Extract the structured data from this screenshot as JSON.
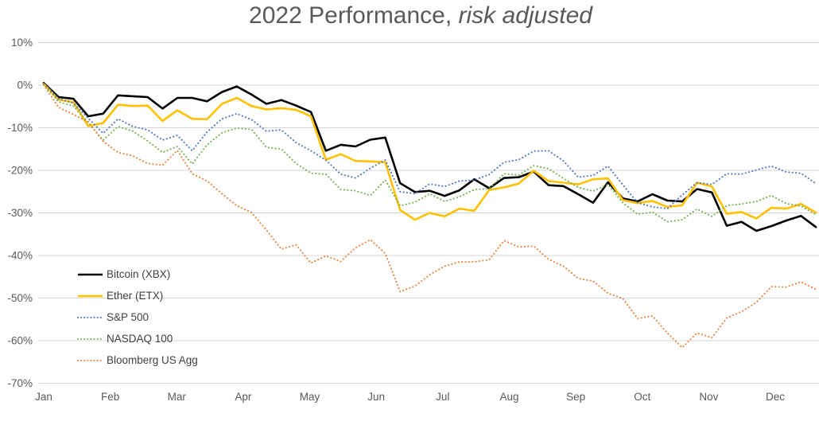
{
  "header": {
    "title_prefix": "2022 Performance, ",
    "title_italic": "risk adjusted"
  },
  "chart_data": {
    "type": "line",
    "title": "2022 Performance, risk adjusted",
    "xlabel": "",
    "ylabel": "",
    "grid": "horizontal-only",
    "legend_position": "inside-left-middle",
    "colors": {
      "grid": "#d6d6d6",
      "axis_text": "#595959",
      "title_text": "#595959",
      "legend_text": "#404040",
      "background": "#ffffff"
    },
    "y_axis": {
      "max": 10,
      "min": -70,
      "ticks": [
        {
          "label": "10%",
          "value": 10
        },
        {
          "label": "0%",
          "value": 0
        },
        {
          "label": "-10%",
          "value": -10
        },
        {
          "label": "-20%",
          "value": -20
        },
        {
          "label": "-30%",
          "value": -30
        },
        {
          "label": "-40%",
          "value": -40
        },
        {
          "label": "-50%",
          "value": -50
        },
        {
          "label": "-60%",
          "value": -60
        },
        {
          "label": "-70%",
          "value": -70
        }
      ]
    },
    "x_axis": {
      "labels": [
        "Jan",
        "Feb",
        "Mar",
        "Apr",
        "May",
        "Jun",
        "Jul",
        "Aug",
        "Sep",
        "Oct",
        "Nov",
        "Dec"
      ],
      "note": "weekly samples, Jan 1 – Dec 31 2022, values in percent"
    },
    "series": [
      {
        "name": "Bitcoin (XBX)",
        "color": "#000000",
        "style": "solid",
        "values": [
          0.5,
          -2.8,
          -3.2,
          -7.3,
          -6.7,
          -2.4,
          -2.6,
          -2.8,
          -5.5,
          -3.0,
          -3.0,
          -3.8,
          -1.6,
          -0.3,
          -2.2,
          -4.4,
          -3.5,
          -4.8,
          -6.3,
          -15.4,
          -14.0,
          -14.4,
          -12.8,
          -12.3,
          -23.0,
          -25.1,
          -24.8,
          -26.0,
          -24.7,
          -22.1,
          -24.2,
          -21.8,
          -21.6,
          -20.3,
          -23.5,
          -23.7,
          -25.6,
          -27.6,
          -22.8,
          -26.6,
          -27.3,
          -25.6,
          -27.1,
          -27.3,
          -24.4,
          -25.2,
          -33.0,
          -32.1,
          -34.2,
          -33.1,
          -31.8,
          -30.7,
          -33.3
        ]
      },
      {
        "name": "Ether (ETX)",
        "color": "#FFC000",
        "style": "solid",
        "values": [
          0.3,
          -3.4,
          -4.0,
          -9.6,
          -8.9,
          -4.6,
          -4.9,
          -4.8,
          -8.4,
          -5.9,
          -7.9,
          -8.0,
          -4.4,
          -3.0,
          -4.9,
          -5.7,
          -5.4,
          -5.8,
          -7.3,
          -17.5,
          -16.2,
          -17.8,
          -17.9,
          -18.1,
          -29.3,
          -31.6,
          -30.0,
          -30.8,
          -29.0,
          -29.5,
          -24.6,
          -24.0,
          -23.1,
          -20.1,
          -22.5,
          -22.9,
          -23.3,
          -22.1,
          -21.9,
          -27.0,
          -27.7,
          -27.2,
          -28.6,
          -28.2,
          -22.9,
          -23.8,
          -30.2,
          -29.8,
          -31.3,
          -28.8,
          -29.0,
          -27.9,
          -29.9
        ]
      },
      {
        "name": "S&P 500",
        "color": "#4472C4",
        "style": "dotted",
        "values": [
          0.3,
          -3.2,
          -4.2,
          -7.8,
          -11.3,
          -7.9,
          -9.7,
          -10.5,
          -12.9,
          -11.8,
          -15.4,
          -11.0,
          -7.9,
          -6.7,
          -8.1,
          -10.8,
          -10.5,
          -13.5,
          -15.4,
          -17.6,
          -20.9,
          -21.8,
          -19.5,
          -17.6,
          -25.0,
          -25.5,
          -23.2,
          -23.8,
          -22.5,
          -22.3,
          -21.0,
          -18.1,
          -17.5,
          -15.5,
          -15.4,
          -17.8,
          -21.6,
          -21.2,
          -19.0,
          -23.4,
          -27.6,
          -28.6,
          -29.0,
          -25.8,
          -22.9,
          -23.3,
          -20.8,
          -20.9,
          -19.9,
          -19.0,
          -20.4,
          -20.7,
          -23.1
        ]
      },
      {
        "name": "NASDAQ 100",
        "color": "#70AD47",
        "style": "dotted",
        "values": [
          0.2,
          -3.9,
          -4.9,
          -8.8,
          -12.9,
          -9.7,
          -10.8,
          -13.1,
          -15.8,
          -14.4,
          -18.5,
          -14.0,
          -11.2,
          -10.1,
          -10.4,
          -14.6,
          -15.0,
          -18.4,
          -20.7,
          -20.9,
          -24.5,
          -24.8,
          -25.9,
          -22.3,
          -28.3,
          -27.5,
          -25.5,
          -27.3,
          -26.2,
          -24.5,
          -24.3,
          -20.8,
          -21.1,
          -18.9,
          -19.6,
          -21.9,
          -24.0,
          -24.9,
          -23.3,
          -27.6,
          -30.3,
          -29.8,
          -32.1,
          -31.6,
          -29.1,
          -30.8,
          -28.3,
          -27.9,
          -27.3,
          -25.9,
          -27.8,
          -28.4,
          -30.4
        ]
      },
      {
        "name": "Bloomberg US Agg",
        "color": "#ED7D31",
        "style": "dotted",
        "values": [
          0.0,
          -5.2,
          -6.9,
          -8.6,
          -13.2,
          -15.8,
          -16.6,
          -18.4,
          -18.8,
          -15.3,
          -20.8,
          -22.5,
          -25.5,
          -28.3,
          -29.9,
          -34.0,
          -38.5,
          -37.5,
          -41.8,
          -40.1,
          -41.4,
          -38.2,
          -36.3,
          -39.5,
          -48.5,
          -47.2,
          -44.5,
          -42.5,
          -41.5,
          -41.5,
          -41.0,
          -36.5,
          -38.0,
          -37.8,
          -40.9,
          -42.5,
          -45.4,
          -46.0,
          -48.9,
          -50.1,
          -54.8,
          -54.2,
          -58.2,
          -61.6,
          -58.2,
          -59.3,
          -54.7,
          -53.2,
          -51.0,
          -47.3,
          -47.4,
          -46.2,
          -47.9
        ]
      }
    ]
  }
}
